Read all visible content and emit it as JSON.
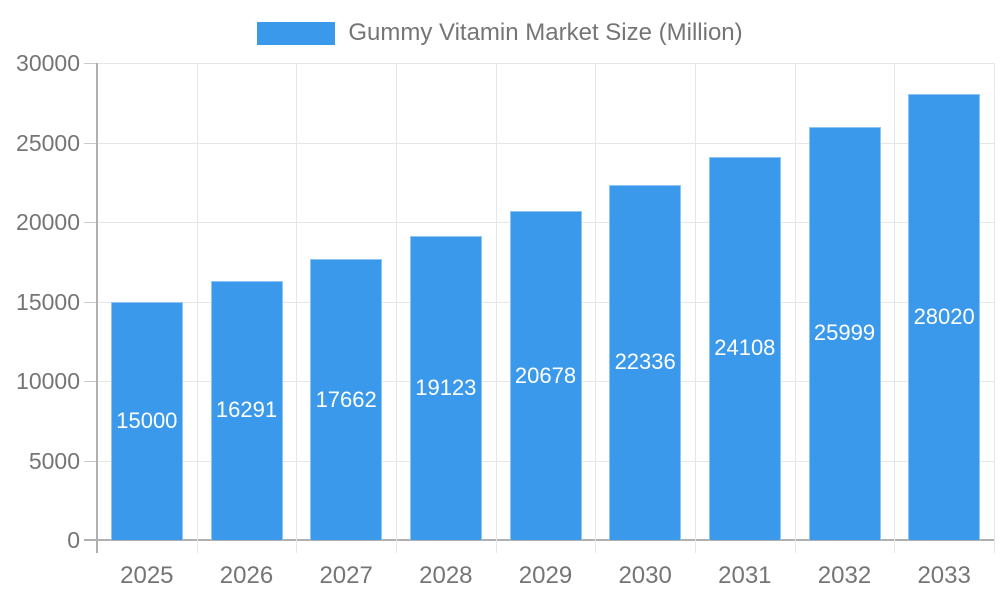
{
  "chart_data": {
    "type": "bar",
    "legend": "Gummy Vitamin Market Size (Million)",
    "legend_position": "top-center",
    "categories": [
      "2025",
      "2026",
      "2027",
      "2028",
      "2029",
      "2030",
      "2031",
      "2032",
      "2033"
    ],
    "values": [
      15000,
      16291,
      17662,
      19123,
      20678,
      22336,
      24108,
      25999,
      28020
    ],
    "value_labels": [
      "15000",
      "16291",
      "17662",
      "19123",
      "20678",
      "22336",
      "24108",
      "25999",
      "28020"
    ],
    "ylim": [
      0,
      30000
    ],
    "ytick_step": 5000,
    "y_tick_labels": [
      "0",
      "5000",
      "10000",
      "15000",
      "20000",
      "25000",
      "30000"
    ],
    "grid": "on",
    "colors": {
      "bar_fill": "#3b99ec",
      "bar_edge": "#8fc5f1",
      "grid_line": "#e6e6e6",
      "axis_line": "#b0b0b0",
      "tick_line": "#c8c8c8",
      "axis_text": "#757575",
      "bar_label_text": "#ffffff",
      "background": "#ffffff"
    }
  }
}
